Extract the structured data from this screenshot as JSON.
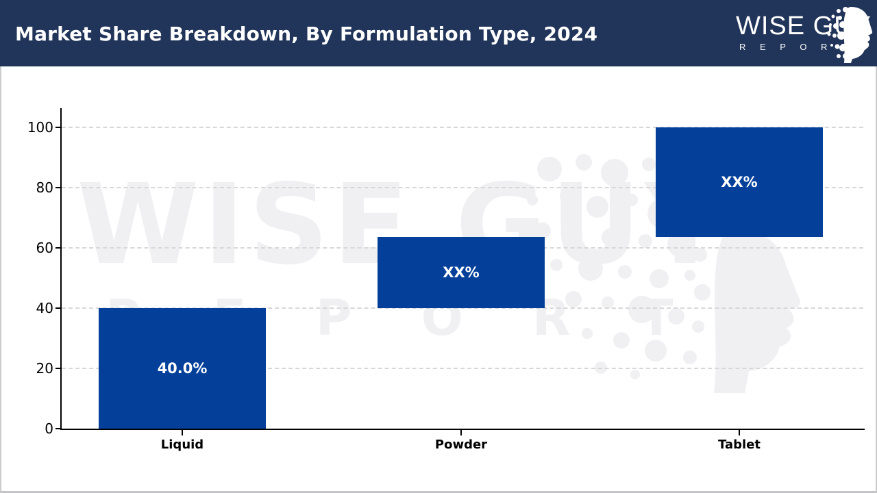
{
  "header": {
    "title": "Market Share Breakdown, By Formulation Type, 2024",
    "logo": {
      "line1": "WISE GUY",
      "line2": "R E P O R T S"
    }
  },
  "watermark": {
    "line1": "WISE GUY",
    "line2": "R E P O R T S"
  },
  "colors": {
    "header_bg": "#213459",
    "bar": "#04409a",
    "bar_label": "#ffffff",
    "watermark": "#f0f0f3",
    "gridline": "#d7d7d7",
    "axis": "#000000"
  },
  "chart_data": {
    "type": "bar",
    "subtype": "waterfall",
    "title": "Market Share Breakdown, By Formulation Type, 2024",
    "categories": [
      "Liquid",
      "Powder",
      "Tablet"
    ],
    "segments": [
      {
        "category": "Liquid",
        "start": 0,
        "end": 40,
        "label": "40.0%"
      },
      {
        "category": "Powder",
        "start": 40,
        "end": 63.6,
        "label": "XX%"
      },
      {
        "category": "Tablet",
        "start": 63.6,
        "end": 100,
        "label": "XX%"
      }
    ],
    "yticks": [
      0,
      20,
      40,
      60,
      80,
      100
    ],
    "ylim": [
      0,
      106
    ],
    "xlabel": "",
    "ylabel": "",
    "grid": "dashed-horizontal",
    "legend": "none"
  }
}
